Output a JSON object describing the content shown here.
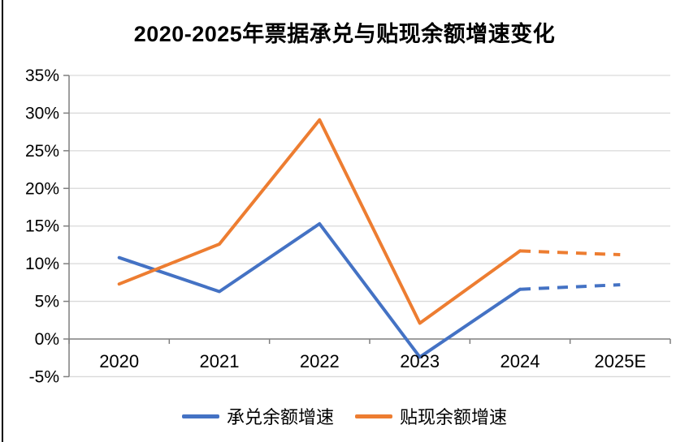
{
  "chart_data": {
    "type": "line",
    "title": "2020-2025年票据承兑与贴现余额增速变化",
    "categories": [
      "2020",
      "2021",
      "2022",
      "2023",
      "2024",
      "2025E"
    ],
    "series": [
      {
        "name": "承兑余额增速",
        "color": "#4472C4",
        "values": [
          10.8,
          6.3,
          15.3,
          -2.4,
          6.6,
          7.2
        ],
        "dashed_from_index": 4
      },
      {
        "name": "贴现余额增速",
        "color": "#ED7D31",
        "values": [
          7.3,
          12.6,
          29.1,
          2.1,
          11.7,
          11.2
        ],
        "dashed_from_index": 4
      }
    ],
    "yticks": [
      {
        "value": 35,
        "label": "35%"
      },
      {
        "value": 30,
        "label": "30%"
      },
      {
        "value": 25,
        "label": "25%"
      },
      {
        "value": 20,
        "label": "20%"
      },
      {
        "value": 15,
        "label": "15%"
      },
      {
        "value": 10,
        "label": "10%"
      },
      {
        "value": 5,
        "label": "5%"
      },
      {
        "value": 0,
        "label": "0%"
      },
      {
        "value": -5,
        "label": "-5%"
      }
    ],
    "ylim": [
      -5,
      35
    ],
    "grid": true,
    "legend_position": "bottom"
  },
  "colors": {
    "series_acceptance": "#4472C4",
    "series_discount": "#ED7D31",
    "gridline": "#D9D9D9",
    "axis": "#7F7F7F",
    "text": "#000000",
    "background": "#FFFFFF",
    "frame_border": "#000000"
  }
}
